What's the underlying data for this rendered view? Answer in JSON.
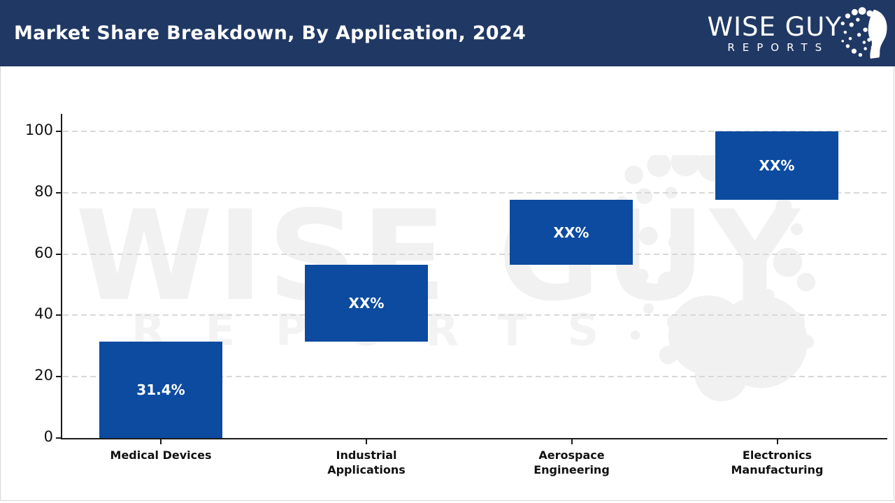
{
  "header": {
    "title": "Market Share Breakdown, By Application, 2024",
    "bg_color": "#203864",
    "logo": {
      "line1": "WISE GUY",
      "line2": "REPORTS"
    }
  },
  "watermark": {
    "line1": "WISE GUY",
    "line2": "REPORTS"
  },
  "chart_data": {
    "type": "bar",
    "subtype": "waterfall",
    "title": "Market Share Breakdown, By Application, 2024",
    "categories": [
      "Medical Devices",
      "Industrial Applications",
      "Aerospace Engineering",
      "Electronics Manufacturing"
    ],
    "category_lines": [
      [
        "Medical Devices"
      ],
      [
        "Industrial",
        "Applications"
      ],
      [
        "Aerospace",
        "Engineering"
      ],
      [
        "Electronics",
        "Manufacturing"
      ]
    ],
    "segments": [
      {
        "category": "Medical Devices",
        "start": 0,
        "end": 31.4,
        "size": 31.4,
        "label": "31.4%"
      },
      {
        "category": "Industrial Applications",
        "start": 31.4,
        "end": 56.4,
        "size": 25.0,
        "label": "XX%"
      },
      {
        "category": "Aerospace Engineering",
        "start": 56.4,
        "end": 77.7,
        "size": 21.3,
        "label": "XX%"
      },
      {
        "category": "Electronics Manufacturing",
        "start": 77.7,
        "end": 100,
        "size": 22.3,
        "label": "XX%"
      }
    ],
    "bar_color": "#0c4ba0",
    "label_color": "#ffffff",
    "axis_color": "#1a1a1a",
    "grid_color": "#d8d8d8",
    "tick_text_color": "#111111",
    "ylim": [
      0,
      100
    ],
    "yticks": [
      0,
      20,
      40,
      60,
      80,
      100
    ],
    "grid": "horizontal-dashed",
    "legend": "none",
    "xlabel": "",
    "ylabel": ""
  }
}
